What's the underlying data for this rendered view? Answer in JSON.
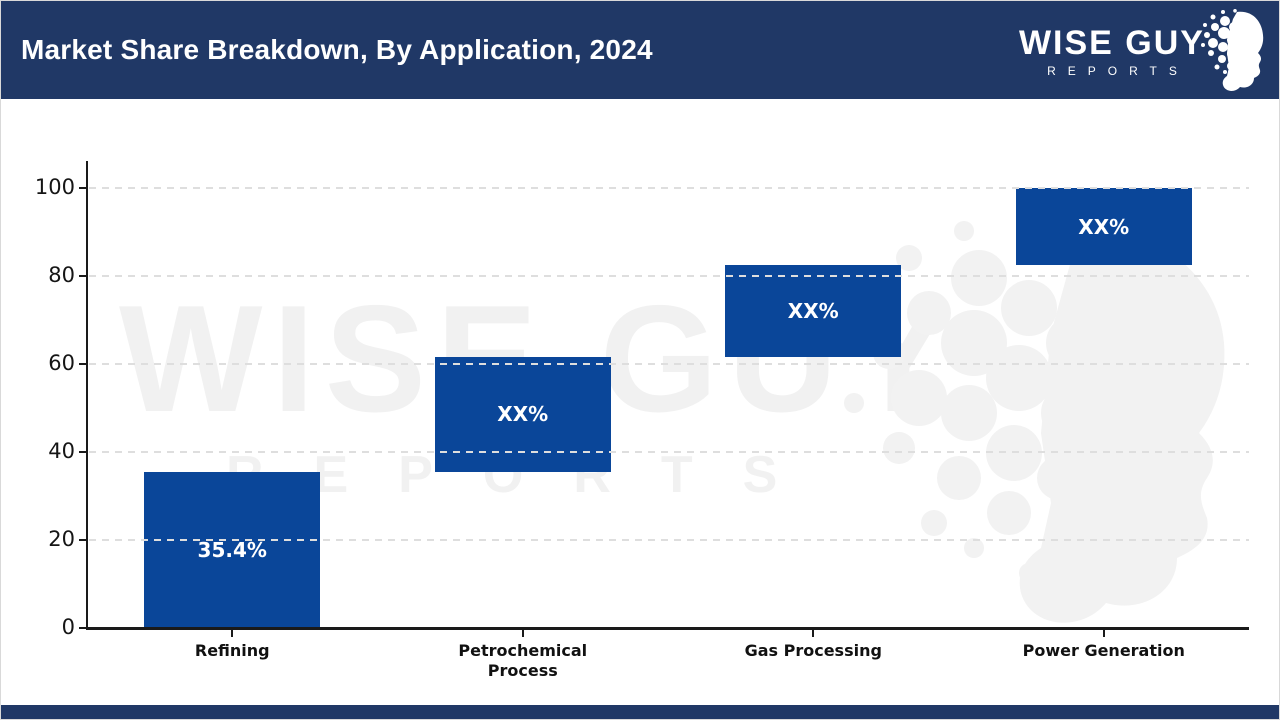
{
  "header": {
    "title": "Market Share Breakdown, By Application, 2024",
    "logo": {
      "line1": "WISE GUY",
      "line2": "REPORTS"
    }
  },
  "watermark": {
    "line1": "WISE GUY",
    "line2": "REPORTS"
  },
  "colors": {
    "header_bg": "#203866",
    "footer_bg": "#203866",
    "bar": "#0a4699",
    "grid": "#dedede",
    "axis": "#1a1a1a",
    "bar_label": "#ffffff",
    "watermark": "#f1f1f1"
  },
  "chart_data": {
    "type": "bar",
    "subtype": "waterfall",
    "title": "Market Share Breakdown, By Application, 2024",
    "xlabel": "",
    "ylabel": "",
    "categories": [
      "Refining",
      "Petrochemical Process",
      "Gas Processing",
      "Power Generation"
    ],
    "series": [
      {
        "name": "Market Share %",
        "segments": [
          {
            "start": 0,
            "end": 35.4,
            "label": "35.4%"
          },
          {
            "start": 35.4,
            "end": 61.7,
            "label": "XX%"
          },
          {
            "start": 61.7,
            "end": 82.5,
            "label": "XX%"
          },
          {
            "start": 82.5,
            "end": 100,
            "label": "XX%"
          }
        ]
      }
    ],
    "yticks": [
      0,
      20,
      40,
      60,
      80,
      100
    ],
    "ylim": [
      0,
      106
    ],
    "grid": "horizontal-dashed",
    "legend": "none"
  }
}
